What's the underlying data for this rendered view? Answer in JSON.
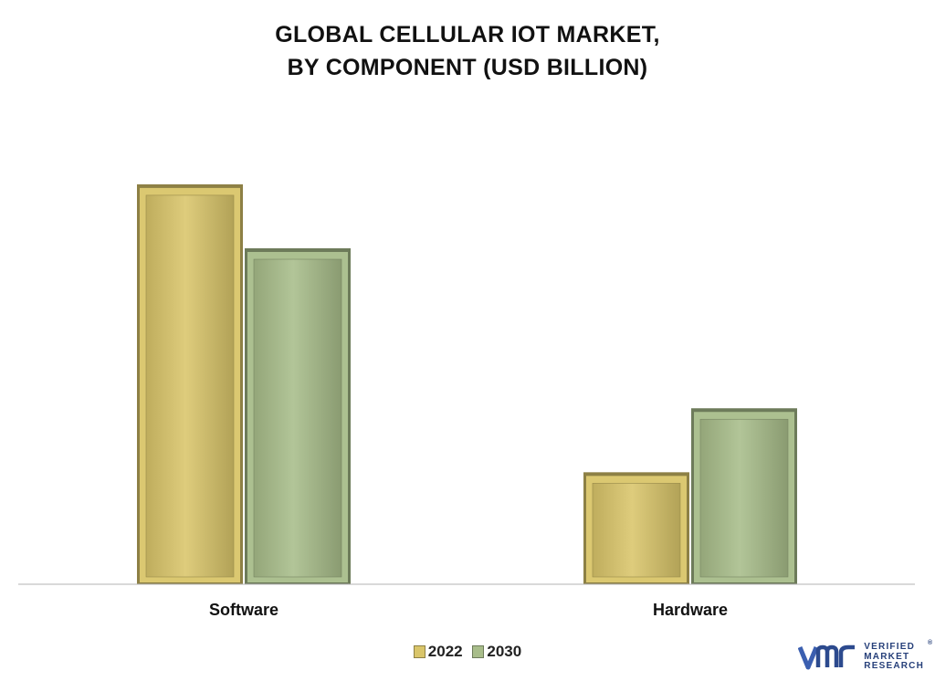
{
  "chart_data": {
    "type": "bar",
    "title": [
      "GLOBAL CELLULAR IOT MARKET,",
      "BY COMPONENT (USD BILLION)"
    ],
    "categories": [
      "Software",
      "Hardware"
    ],
    "series": [
      {
        "name": "2022",
        "values": [
          10.0,
          2.8
        ],
        "color": "#d9c56a"
      },
      {
        "name": "2030",
        "values": [
          8.4,
          4.4
        ],
        "color": "#a8bd8a"
      }
    ],
    "xlabel": "",
    "ylabel": "",
    "ylim": [
      0,
      10.5
    ],
    "grid": false,
    "legend_position": "bottom-center",
    "value_axis_visible": false
  },
  "brand": {
    "name_lines": [
      "VERIFIED",
      "MARKET",
      "RESEARCH"
    ],
    "registered_mark": "®",
    "logo_icon": "vmr-logo-icon",
    "color": "#27407a"
  }
}
